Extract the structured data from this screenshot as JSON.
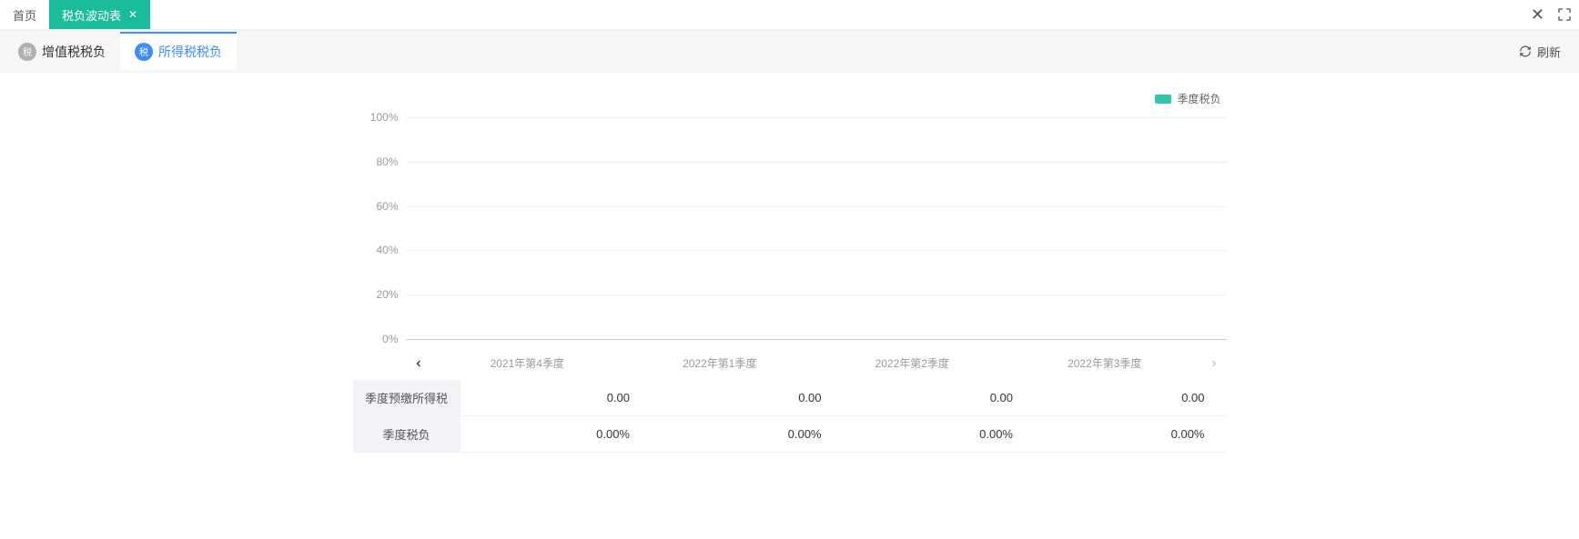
{
  "topbar": {
    "home_label": "首页",
    "active_tab_label": "税负波动表"
  },
  "subtabs": {
    "items": [
      {
        "label": "增值税税负",
        "active": false
      },
      {
        "label": "所得税税负",
        "active": true
      }
    ],
    "refresh_label": "刷新"
  },
  "chart": {
    "type": "bar",
    "legend_label": "季度税负",
    "legend_color": "#34c3b0",
    "y_ticks": [
      "100%",
      "80%",
      "60%",
      "40%",
      "20%",
      "0%"
    ],
    "ylim": [
      0,
      100
    ],
    "grid_color": "#eeeeee",
    "axis_color": "#cccccc",
    "categories": [
      "2021年第4季度",
      "2022年第1季度",
      "2022年第2季度",
      "2022年第3季度"
    ],
    "values": [
      0,
      0,
      0,
      0
    ]
  },
  "table": {
    "rows": [
      {
        "label": "季度预缴所得税",
        "cells": [
          "0.00",
          "0.00",
          "0.00",
          "0.00"
        ]
      },
      {
        "label": "季度税负",
        "cells": [
          "0.00%",
          "0.00%",
          "0.00%",
          "0.00%"
        ]
      }
    ]
  },
  "colors": {
    "accent_green": "#1abc9c",
    "accent_blue": "#3e8ef7",
    "bg_subbar": "#f5f6f7",
    "table_header_bg": "#f1f3f6"
  }
}
